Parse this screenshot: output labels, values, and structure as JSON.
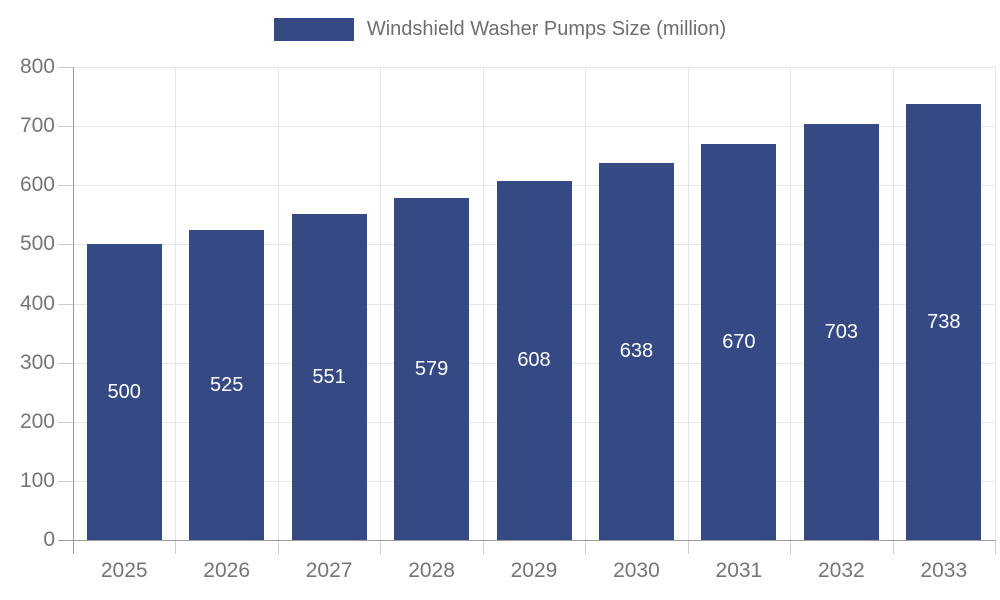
{
  "legend": {
    "series_label": "Windshield Washer Pumps Size (million)"
  },
  "chart_data": {
    "type": "bar",
    "title": "",
    "series_name": "Windshield Washer Pumps Size (million)",
    "categories": [
      "2025",
      "2026",
      "2027",
      "2028",
      "2029",
      "2030",
      "2031",
      "2032",
      "2033"
    ],
    "values": [
      500,
      525,
      551,
      579,
      608,
      638,
      670,
      703,
      738
    ],
    "xlabel": "",
    "ylabel": "",
    "ylim": [
      0,
      800
    ],
    "yticks": [
      0,
      100,
      200,
      300,
      400,
      500,
      600,
      700,
      800
    ],
    "grid": true,
    "legend_position": "top",
    "value_label_position": "inside-center",
    "colors": {
      "bar": "#354a84",
      "value_label": "#ffffff",
      "axis_line": "#999999",
      "tick_line": "#cccccc",
      "grid_line": "#e6e6e6",
      "axis_text": "#757575",
      "legend_text": "#6e6e6e",
      "background": "#ffffff"
    }
  }
}
